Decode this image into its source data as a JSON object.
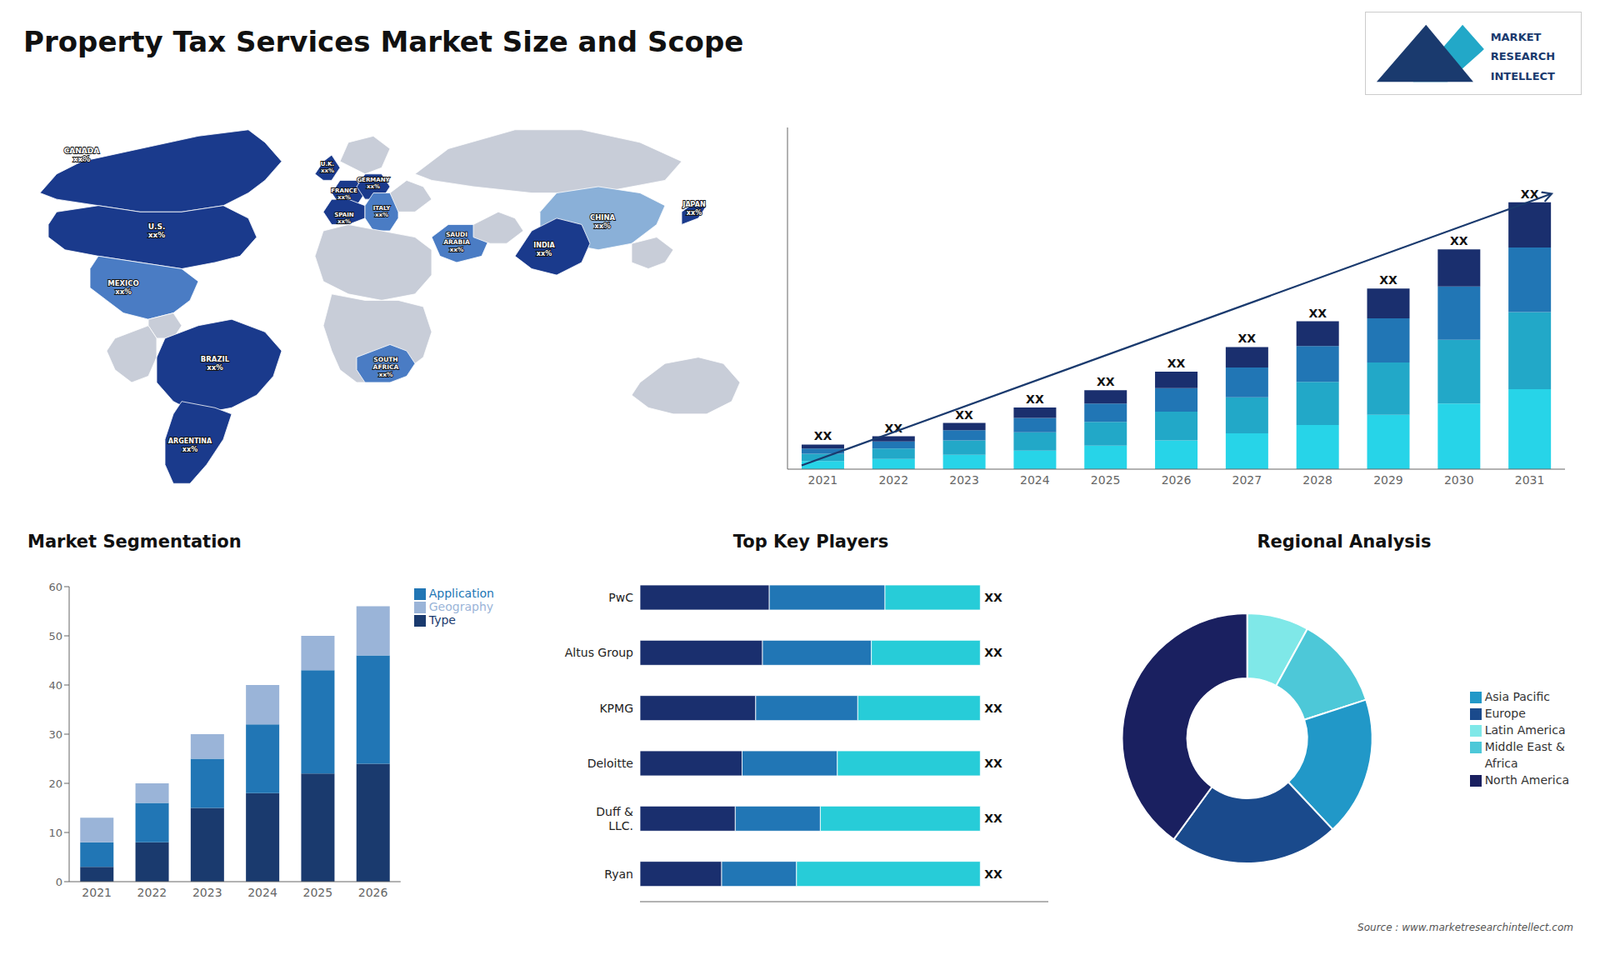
{
  "title": "Property Tax Services Market Size and Scope",
  "annotations": [
    {
      "text": "Source : www.marketresearchintellect.com"
    },
    {
      "text": "MARKET\nRESEARCH\nINTELLECT",
      "colors": [
        "#1a3a6e",
        "#22a8c8"
      ]
    }
  ],
  "chart_data": [
    {
      "type": "map",
      "categories": [
        "CANADA",
        "U.S.",
        "MEXICO",
        "BRAZIL",
        "ARGENTINA",
        "U.K.",
        "FRANCE",
        "SPAIN",
        "GERMANY",
        "ITALY",
        "SAUDI\nARABIA",
        "SOUTH\nAFRICA",
        "CHINA",
        "INDIA",
        "JAPAN"
      ],
      "value_labels": [
        "xx%",
        "xx%",
        "xx%",
        "xx%",
        "xx%",
        "xx%",
        "xx%",
        "xx%",
        "xx%",
        "xx%",
        "xx%",
        "xx%",
        "xx%",
        "xx%",
        "xx%"
      ],
      "colors": [
        "#1a3a8c",
        "#1a3a8c",
        "#4a7cc4",
        "#1a3a8c",
        "#1a3a8c",
        "#1a3a8c",
        "#1a3a8c",
        "#1a3a8c",
        "#1a3a8c",
        "#4a7cc4",
        "#4a7cc4",
        "#4a7cc4",
        "#8ab0d8",
        "#1a3a8c",
        "#1a3a8c"
      ],
      "land_color": "#c8cdd8"
    },
    {
      "type": "bar",
      "stacked": true,
      "categories": [
        "2021",
        "2022",
        "2023",
        "2024",
        "2025",
        "2026",
        "2027",
        "2028",
        "2029",
        "2030",
        "2031"
      ],
      "series": [
        {
          "color": "#27d4e8",
          "values": [
            0.8,
            1.0,
            1.4,
            1.8,
            2.3,
            2.8,
            3.5,
            4.3,
            5.3,
            6.4,
            7.8
          ]
        },
        {
          "color": "#22a8c8",
          "values": [
            0.7,
            1.0,
            1.4,
            1.8,
            2.3,
            2.8,
            3.5,
            4.2,
            5.1,
            6.2,
            7.5
          ]
        },
        {
          "color": "#2176b5",
          "values": [
            0.5,
            0.7,
            1.0,
            1.4,
            1.8,
            2.3,
            2.9,
            3.5,
            4.3,
            5.2,
            6.3
          ]
        },
        {
          "color": "#1a2f6e",
          "values": [
            0.4,
            0.5,
            0.7,
            1.0,
            1.3,
            1.6,
            2.0,
            2.4,
            2.9,
            3.6,
            4.4
          ],
          "value_labels": [
            "XX",
            "XX",
            "XX",
            "XX",
            "XX",
            "XX",
            "XX",
            "XX",
            "XX",
            "XX",
            "XX"
          ]
        }
      ],
      "ylim": [
        0,
        33.28
      ],
      "tick_labels": "x",
      "grid": false,
      "annotations": [
        {
          "type": "arrow",
          "color": "#1a3a6e"
        }
      ]
    },
    {
      "type": "bar",
      "stacked": true,
      "title": "Market Segmentation",
      "categories": [
        "2021",
        "2022",
        "2023",
        "2024",
        "2025",
        "2026"
      ],
      "series": [
        {
          "name": "Type",
          "color": "#1a3a6e",
          "values": [
            3,
            8,
            15,
            18,
            22,
            24
          ]
        },
        {
          "name": "Application",
          "color": "#2176b5",
          "values": [
            5,
            8,
            10,
            14,
            21,
            22
          ]
        },
        {
          "name": "Geography",
          "color": "#9ab4d8",
          "values": [
            5,
            4,
            5,
            8,
            7,
            10
          ]
        }
      ],
      "ylim": [
        0,
        60
      ],
      "yticks": [
        0,
        10,
        20,
        30,
        40,
        50,
        60
      ],
      "legend": "upper right",
      "grid": false
    },
    {
      "type": "bar",
      "orientation": "horizontal",
      "stacked": true,
      "title": "Top Key Players",
      "categories": [
        "PwC",
        "Altus Group",
        "KPMG",
        "Deloitte",
        "Duff &\nLLC.",
        "Ryan"
      ],
      "series": [
        {
          "color": "#1a2f6e",
          "values": [
            0.38,
            0.36,
            0.34,
            0.3,
            0.28,
            0.24
          ]
        },
        {
          "color": "#2176b5",
          "values": [
            0.34,
            0.32,
            0.3,
            0.28,
            0.25,
            0.22
          ]
        },
        {
          "color": "#27ccd8",
          "values": [
            0.28,
            0.32,
            0.36,
            0.42,
            0.47,
            0.54
          ],
          "value_labels": [
            "XX",
            "XX",
            "XX",
            "XX",
            "XX",
            "XX"
          ]
        }
      ],
      "xlim": [
        0,
        1.2
      ],
      "tick_labels": "y",
      "grid": false
    },
    {
      "type": "pie",
      "title": "Regional Analysis",
      "categories": [
        "Latin America",
        "Middle East &\nAfrica",
        "Asia Pacific",
        "Europe",
        "North America"
      ],
      "values": [
        8,
        12,
        18,
        22,
        40
      ],
      "colors": [
        "#7fe8e8",
        "#4dc8d8",
        "#2198c8",
        "#1a4a8c",
        "#1a2060"
      ],
      "legend": "right"
    }
  ]
}
